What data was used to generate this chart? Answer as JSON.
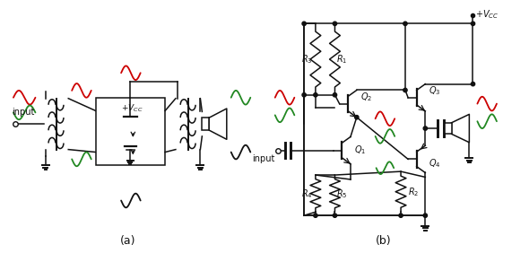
{
  "figsize": [
    5.9,
    2.92
  ],
  "dpi": 100,
  "bg_color": "#ffffff",
  "label_a": "(a)",
  "label_b": "(b)",
  "sine_red": "#cc0000",
  "sine_green": "#228822",
  "sine_black": "#111111",
  "line_color": "#111111",
  "lw": 1.1,
  "font_size": 8.5,
  "font_size_small": 7.0
}
